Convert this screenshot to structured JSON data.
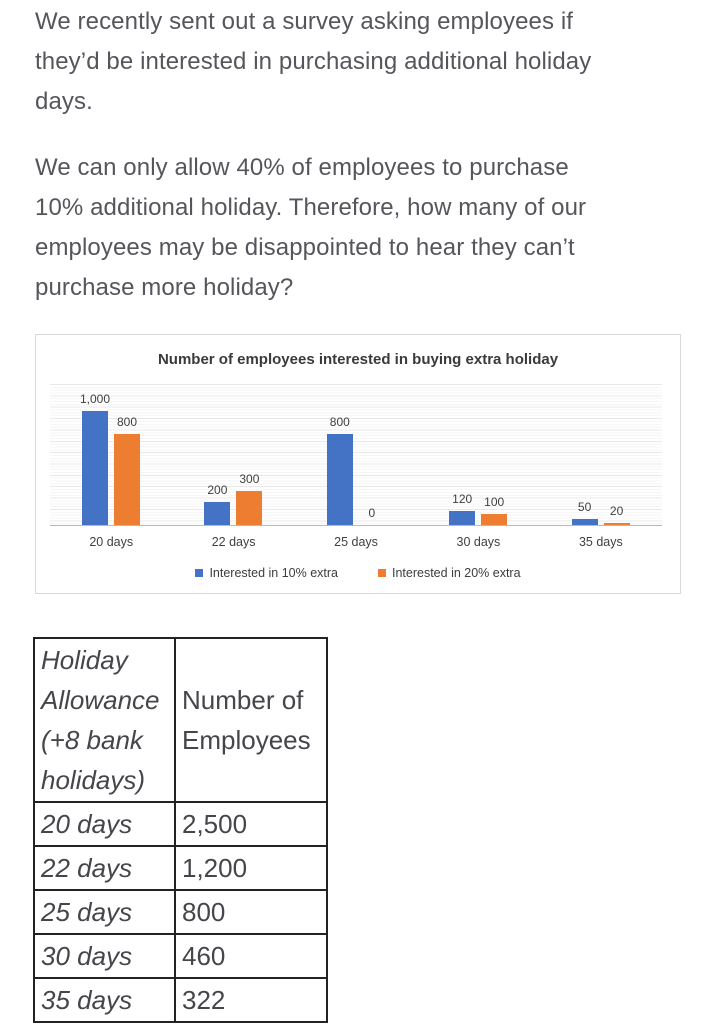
{
  "question": {
    "paragraphs": [
      {
        "lines": [
          "We recently sent out a survey asking employees if",
          "they’d be interested in purchasing additional holiday",
          "days."
        ]
      },
      {
        "lines": [
          "We can only allow 40% of employees to purchase",
          "10% additional holiday. Therefore, how many of our",
          "employees may be disappointed to hear they can’t",
          "purchase more holiday?"
        ]
      }
    ]
  },
  "chart_data": {
    "type": "bar",
    "title": "Number of employees interested in buying extra holiday",
    "categories": [
      "20 days",
      "22 days",
      "25 days",
      "30 days",
      "35 days"
    ],
    "series": [
      {
        "name": "Interested in 10% extra",
        "color": "#4472C4",
        "values": [
          1000,
          200,
          800,
          120,
          50
        ],
        "data_labels": [
          "1,000",
          "200",
          "800",
          "120",
          "50"
        ]
      },
      {
        "name": "Interested in 20% extra",
        "color": "#ED7D31",
        "values": [
          800,
          300,
          0,
          100,
          20
        ],
        "data_labels": [
          "800",
          "300",
          "0",
          "100",
          "20"
        ]
      }
    ],
    "xlabel": "",
    "ylabel": "",
    "ylim": [
      0,
      1250
    ],
    "grid": "fine horizontal minor + major gridlines",
    "legend_position": "bottom",
    "data_label_color": "#404040",
    "title_color": "#3a3a3a"
  },
  "table": {
    "headers": [
      "Holiday Allowance (+8 bank holidays)",
      "Number of Employees"
    ],
    "rows": [
      [
        "20 days",
        "2,500"
      ],
      [
        "22 days",
        "1,200"
      ],
      [
        "25 days",
        "800"
      ],
      [
        "30 days",
        "460"
      ],
      [
        "35 days",
        "322"
      ]
    ]
  }
}
